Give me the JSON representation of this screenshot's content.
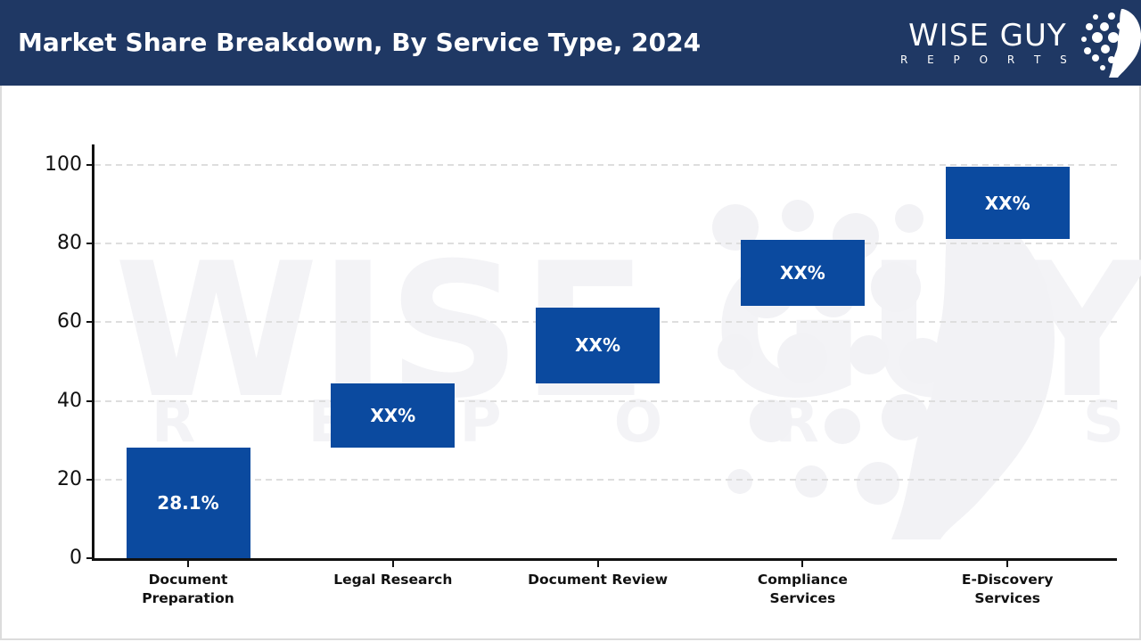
{
  "header": {
    "title": "Market Share Breakdown, By Service Type, 2024"
  },
  "logo": {
    "name": "WISE GUY",
    "tagline": "R E P O R T S",
    "face_icon": "dotted-face-profile"
  },
  "watermark": {
    "line1": "WISE GUY",
    "line2": "R E P O R T S",
    "face_icon": "dotted-face-profile"
  },
  "colors": {
    "header_bg": "#1f3864",
    "bar": "#0b4a9f",
    "bar_label": "#ffffff",
    "axis": "#111111",
    "gridline": "#dedede",
    "watermark": "#f3f3f6"
  },
  "chart_data": {
    "type": "bar",
    "subtype": "waterfall",
    "title": "Market Share Breakdown, By Service Type, 2024",
    "categories": [
      "Document Preparation",
      "Legal Research",
      "Document Review",
      "Compliance Services",
      "E-Discovery Services"
    ],
    "category_lines": [
      [
        "Document",
        "Preparation"
      ],
      [
        "Legal Research"
      ],
      [
        "Document Review"
      ],
      [
        "Compliance",
        "Services"
      ],
      [
        "E-Discovery",
        "Services"
      ]
    ],
    "segments": [
      {
        "category": "Document Preparation",
        "start": 0,
        "end": 28.1,
        "label": "28.1%"
      },
      {
        "category": "Legal Research",
        "start": 28.1,
        "end": 44.4,
        "label": "XX%"
      },
      {
        "category": "Document Review",
        "start": 44.4,
        "end": 63.8,
        "label": "XX%"
      },
      {
        "category": "Compliance Services",
        "start": 64.2,
        "end": 80.9,
        "label": "XX%"
      },
      {
        "category": "E-Discovery Services",
        "start": 81.1,
        "end": 99.6,
        "label": "XX%"
      }
    ],
    "xlabel": "",
    "ylabel": "",
    "ylim": [
      0,
      105
    ],
    "yticks": [
      0,
      20,
      40,
      60,
      80,
      100
    ],
    "grid": "horizontal-dashed",
    "legend": "none"
  }
}
